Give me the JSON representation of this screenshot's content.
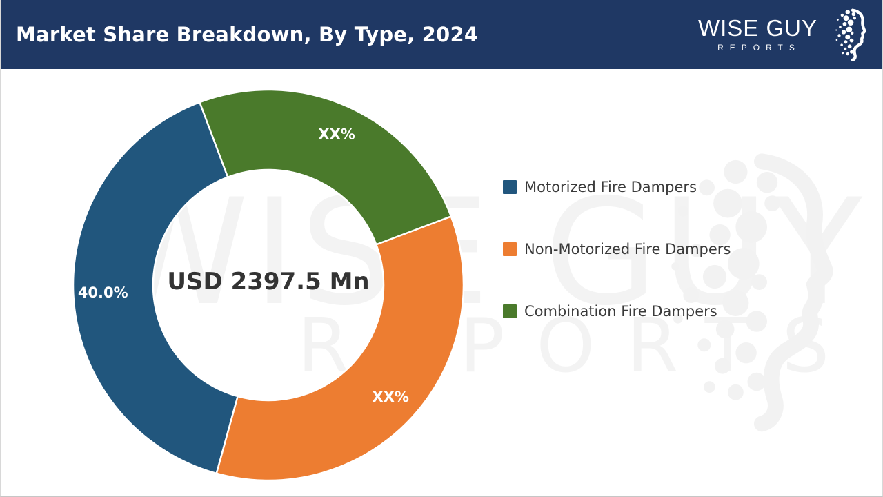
{
  "header": {
    "title": "Market Share Breakdown, By Type, 2024",
    "logo": {
      "name": "WISE GUY",
      "subtitle": "REPORTS"
    }
  },
  "watermark": {
    "line1": "WISE GUY",
    "line2": "REPORTS"
  },
  "chart_data": {
    "type": "pie",
    "subtype": "donut",
    "title": "Market Share Breakdown, By Type, 2024",
    "center_label": "USD 2397.5 Mn",
    "start_angle_deg": 110.6,
    "direction": "counterclockwise",
    "inner_radius_ratio": 0.59,
    "legend_position": "right",
    "segments": [
      {
        "label": "Motorized Fire Dampers",
        "value_pct": 40.0,
        "display_label": "40.0%",
        "color": "#21567D"
      },
      {
        "label": "Non-Motorized Fire Dampers",
        "value_pct": 35.0,
        "display_label": "XX%",
        "color": "#ED7D31"
      },
      {
        "label": "Combination Fire Dampers",
        "value_pct": 25.0,
        "display_label": "XX%",
        "color": "#4A7A2B"
      }
    ]
  },
  "colors": {
    "header_bg": "#1F3864",
    "header_text": "#FFFFFF",
    "center_text": "#333333",
    "legend_text": "#3A3A3A",
    "watermark": "#F2F2F2",
    "segment_separator": "#FFFFFF"
  }
}
